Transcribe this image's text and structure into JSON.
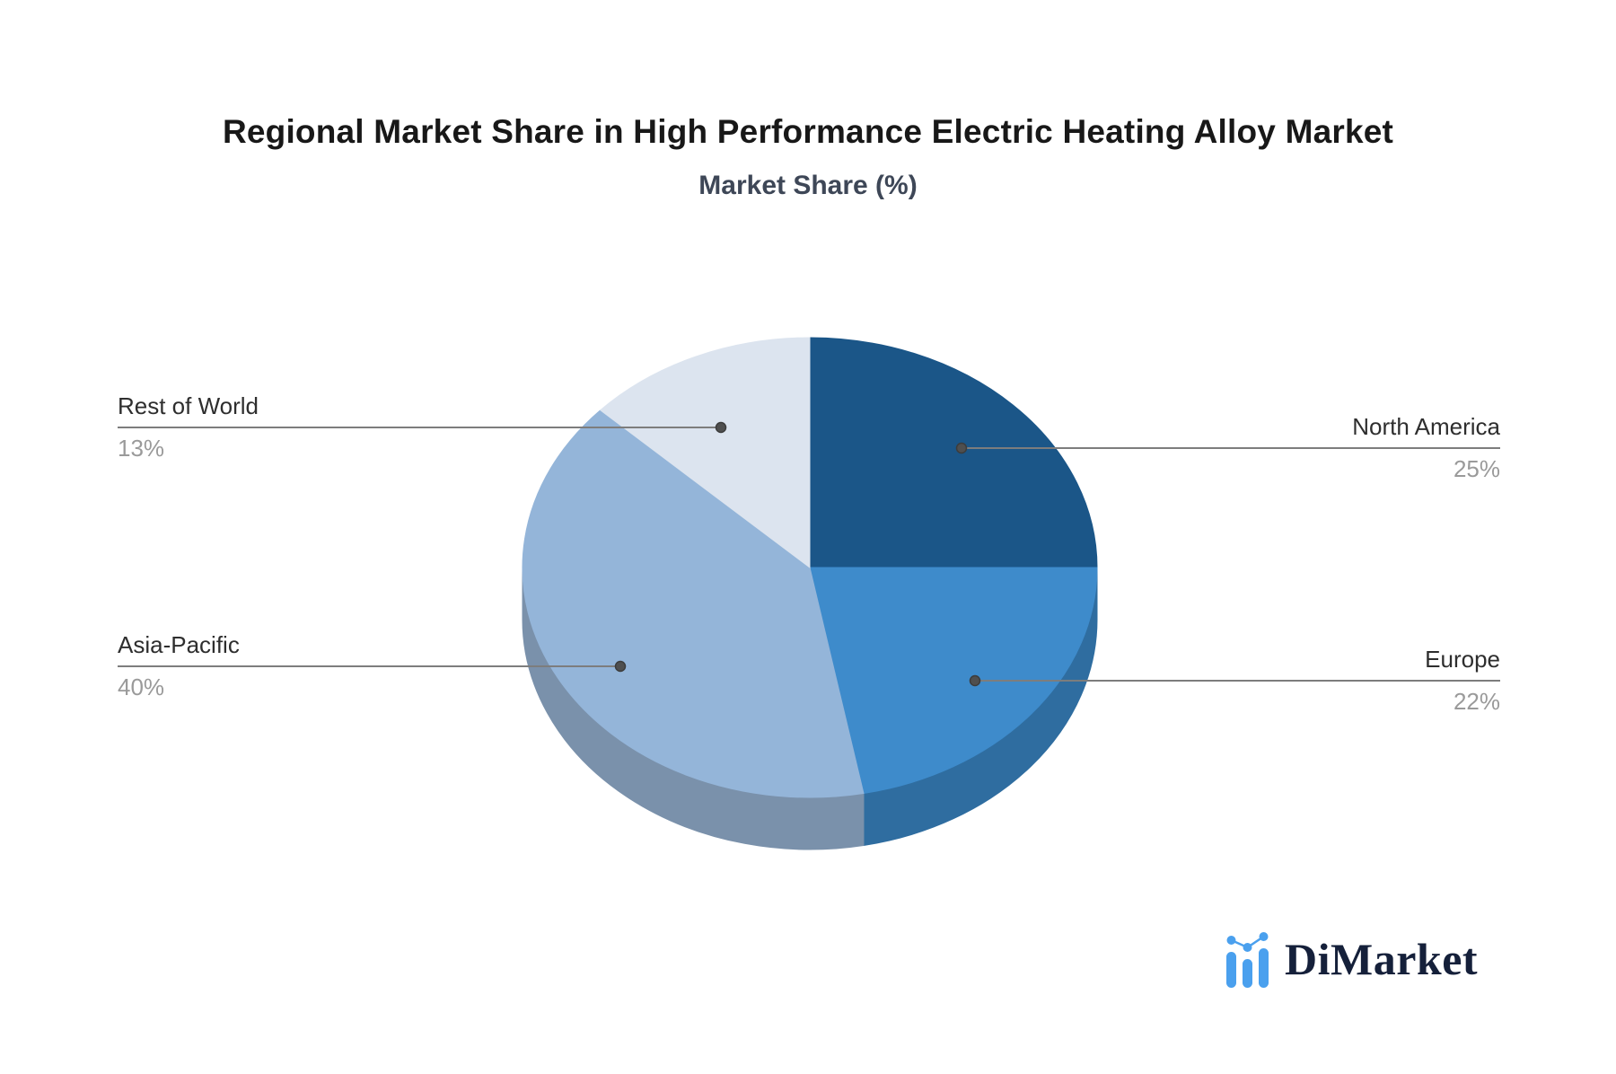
{
  "header": {
    "title": "Regional Market Share in High Performance Electric Heating Alloy Market",
    "subtitle": "Market Share (%)"
  },
  "logo": {
    "text": "DiMarket",
    "icon": "bar-chart-with-trend-dots-icon",
    "icon_color": "#4aa0ee",
    "text_color": "#15203a"
  },
  "chart_data": {
    "type": "pie",
    "title": "Regional Market Share in High Performance Electric Heating Alloy Market",
    "subtitle": "Market Share (%)",
    "unit": "%",
    "effect_3d": true,
    "start_angle_deg": 0,
    "direction": "clockwise",
    "legend_position": "none",
    "slices": [
      {
        "label": "North America",
        "value": 25,
        "display": "25%",
        "color": "#1b5688",
        "side_color": "#164a76",
        "label_side": "right"
      },
      {
        "label": "Europe",
        "value": 22,
        "display": "22%",
        "color": "#3e8bcb",
        "side_color": "#2f6da0",
        "label_side": "right"
      },
      {
        "label": "Asia-Pacific",
        "value": 40,
        "display": "40%",
        "color": "#94b5d9",
        "side_color": "#7a91ab",
        "label_side": "left"
      },
      {
        "label": "Rest of World",
        "value": 13,
        "display": "13%",
        "color": "#dce4ef",
        "side_color": "#b8c4d4",
        "label_side": "left"
      }
    ],
    "connector_color": "#7d7d7d",
    "connector_dot_color": "#4f4f4f",
    "label_name_color": "#2e2e2e",
    "label_percent_color": "#9a9a9a"
  }
}
